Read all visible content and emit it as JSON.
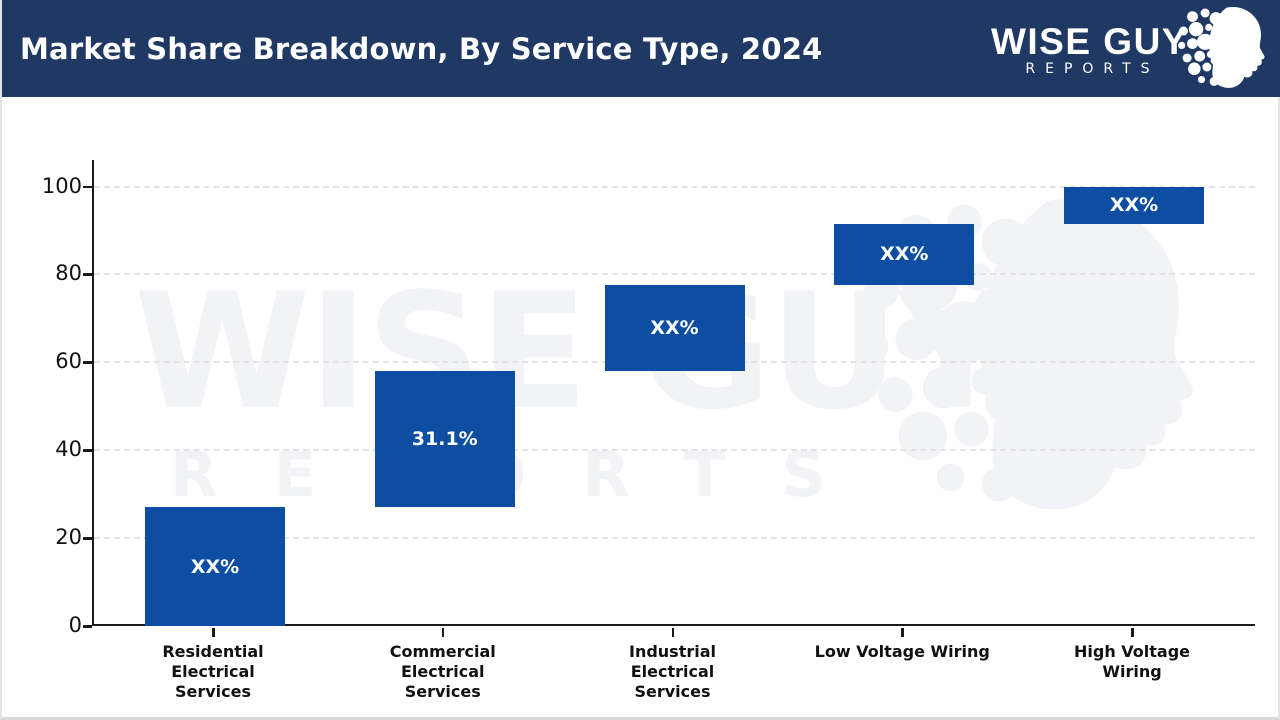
{
  "header": {
    "title": "Market Share Breakdown, By Service Type, 2024",
    "background_color": "#1f3864",
    "logo": {
      "primary": "WISE GUY",
      "secondary": "REPORTS",
      "icon": "dotted-head-profile"
    }
  },
  "watermark": {
    "primary": "WISE GUY",
    "secondary": "REPORTS",
    "icon": "dotted-head-profile",
    "color": "#f2f3f6"
  },
  "chart_data": {
    "type": "bar",
    "subtype": "waterfall",
    "title": "Market Share Breakdown, By Service Type, 2024",
    "xlabel": "",
    "ylabel": "",
    "ylim": [
      0,
      100
    ],
    "yticks": [
      0,
      20,
      40,
      60,
      80,
      100
    ],
    "grid": "horizontal-dashed",
    "legend": "none",
    "bar_color": "#0d4da2",
    "bar_label_color": "#ffffff",
    "axis_color": "#1a1a1a",
    "gridline_color": "#e3e3e6",
    "categories": [
      "Residential Electrical Services",
      "Commercial Electrical Services",
      "Industrial Electrical Services",
      "Low Voltage Wiring",
      "High Voltage Wiring"
    ],
    "category_label_lines": [
      [
        "Residential",
        "Electrical",
        "Services"
      ],
      [
        "Commercial",
        "Electrical",
        "Services"
      ],
      [
        "Industrial",
        "Electrical",
        "Services"
      ],
      [
        "Low Voltage Wiring"
      ],
      [
        "High Voltage",
        "Wiring"
      ]
    ],
    "segments": [
      {
        "category": "Residential Electrical Services",
        "start": 0,
        "end": 27.0,
        "label": "XX%"
      },
      {
        "category": "Commercial Electrical Services",
        "start": 27.0,
        "end": 58.1,
        "label": "31.1%",
        "value": 31.1
      },
      {
        "category": "Industrial Electrical Services",
        "start": 58.1,
        "end": 77.7,
        "label": "XX%"
      },
      {
        "category": "Low Voltage Wiring",
        "start": 77.7,
        "end": 91.6,
        "label": "XX%"
      },
      {
        "category": "High Voltage Wiring",
        "start": 91.6,
        "end": 100.0,
        "label": "XX%"
      }
    ]
  }
}
